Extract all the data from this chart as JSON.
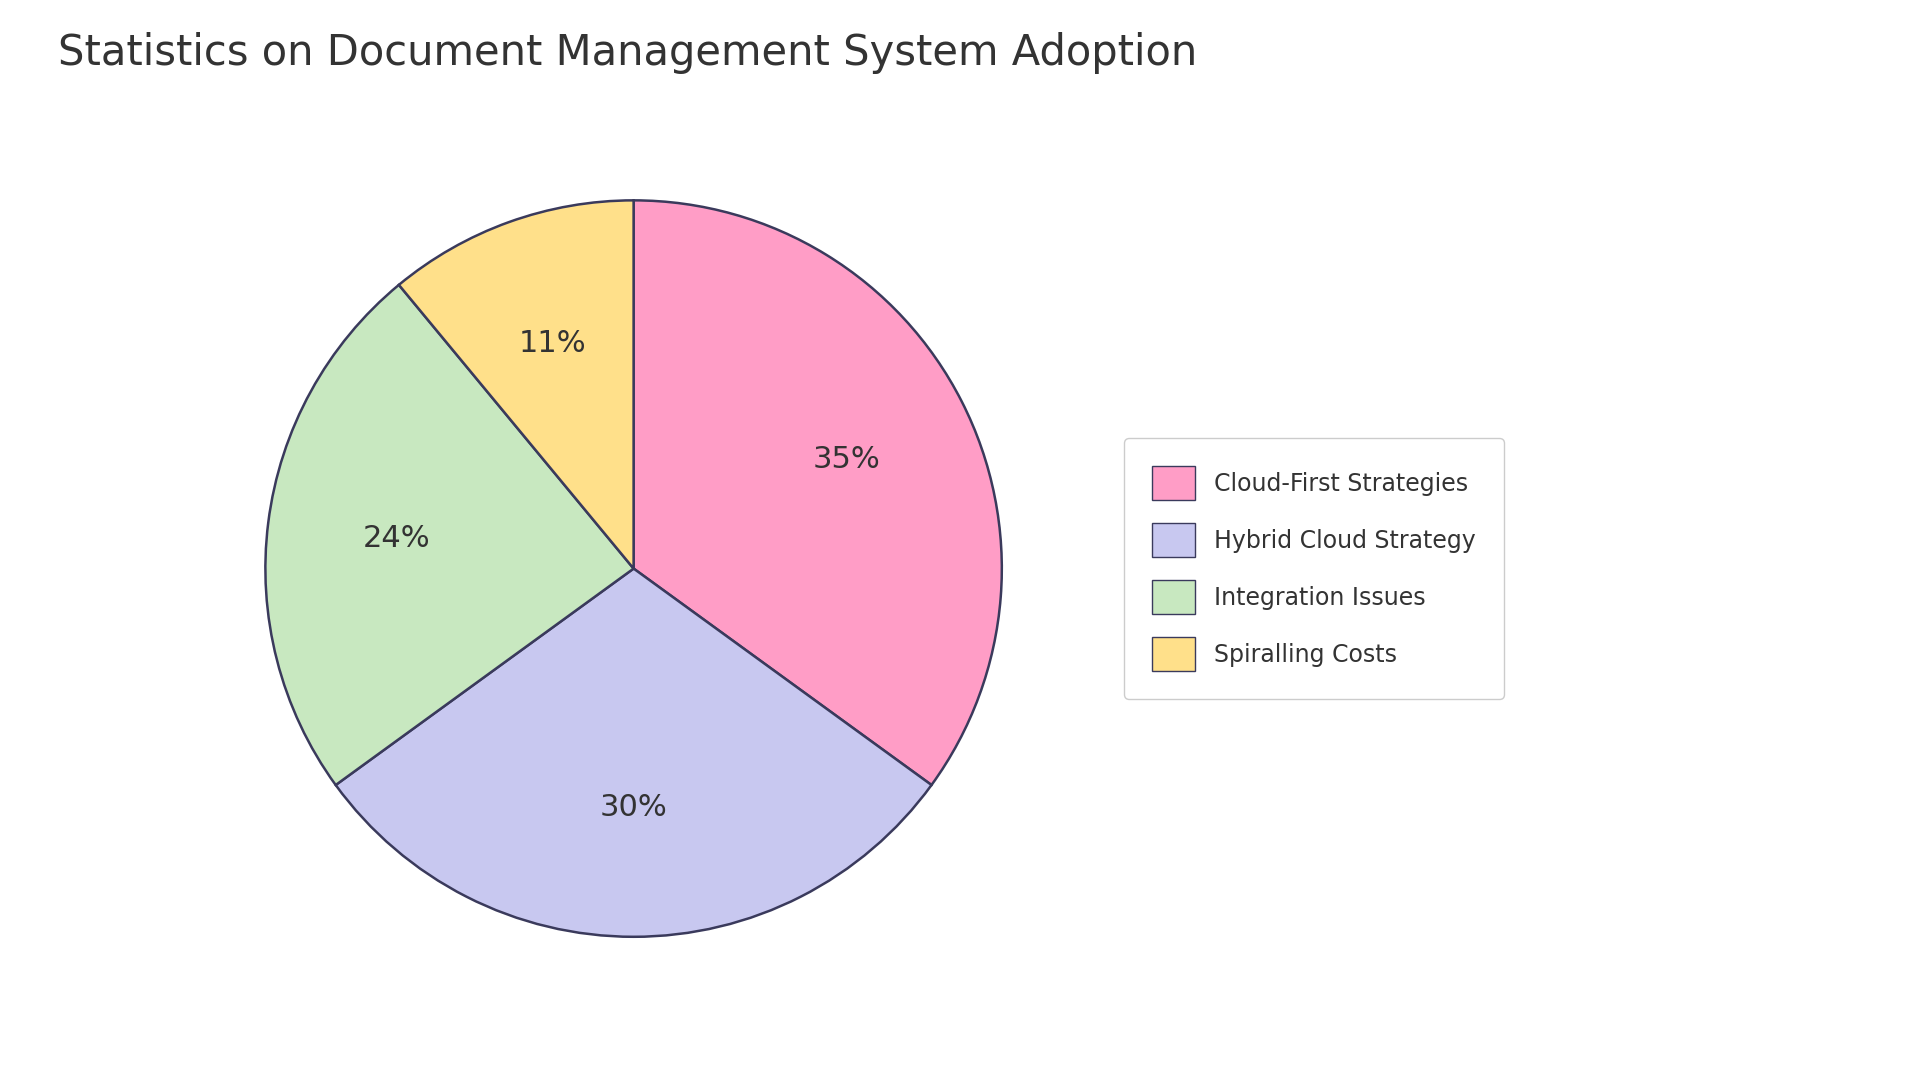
{
  "title": "Statistics on Document Management System Adoption",
  "labels": [
    "Cloud-First Strategies",
    "Hybrid Cloud Strategy",
    "Integration Issues",
    "Spiralling Costs"
  ],
  "values": [
    35,
    30,
    24,
    11
  ],
  "colors": [
    "#FF9DC6",
    "#C8C8F0",
    "#C8E8C0",
    "#FFE08A"
  ],
  "edge_color": "#3a3a5c",
  "edge_width": 1.8,
  "autopct_fontsize": 22,
  "legend_fontsize": 17,
  "title_fontsize": 30,
  "title_color": "#333333",
  "background_color": "#ffffff",
  "startangle": 90,
  "autopct_color": "#333333",
  "pct_distance": 0.65
}
